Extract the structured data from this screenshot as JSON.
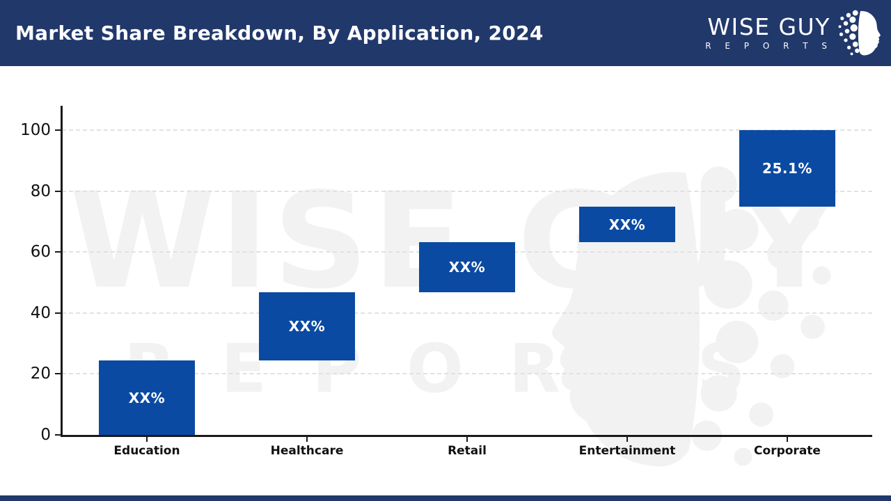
{
  "header": {
    "title": "Market Share Breakdown, By Application, 2024",
    "logo": {
      "name": "WISE GUY",
      "subtitle": "R E P O R T S",
      "face_icon": "dotted-head-profile"
    }
  },
  "watermark": {
    "name": "WISE GUY",
    "subtitle": "R E P O R T S",
    "face_icon": "dotted-head-profile"
  },
  "colors": {
    "header_bg": "#21386b",
    "bar": "#0b4aa2",
    "bar_label": "#ffffff",
    "grid": "#e1e1e1",
    "axis": "#1a1a1a",
    "watermark": "#f2f2f2"
  },
  "chart_data": {
    "type": "bar",
    "subtype": "waterfall-floating-bars",
    "title": "Market Share Breakdown, By Application, 2024",
    "xlabel": "",
    "ylabel": "",
    "categories": [
      "Education",
      "Healthcare",
      "Retail",
      "Entertainment",
      "Corporate"
    ],
    "segments": [
      {
        "category": "Education",
        "start": 0,
        "end": 24.4,
        "value": 24.4,
        "label": "XX%"
      },
      {
        "category": "Healthcare",
        "start": 24.4,
        "end": 46.9,
        "value": 22.5,
        "label": "XX%"
      },
      {
        "category": "Retail",
        "start": 46.9,
        "end": 63.2,
        "value": 16.3,
        "label": "XX%"
      },
      {
        "category": "Entertainment",
        "start": 63.2,
        "end": 74.9,
        "value": 11.7,
        "label": "XX%"
      },
      {
        "category": "Corporate",
        "start": 74.9,
        "end": 100,
        "value": 25.1,
        "label": "25.1%"
      }
    ],
    "yticks": [
      0,
      20,
      40,
      60,
      80,
      100
    ],
    "ylim": [
      0,
      108
    ],
    "grid": "horizontal-dashed",
    "legend": "none"
  }
}
